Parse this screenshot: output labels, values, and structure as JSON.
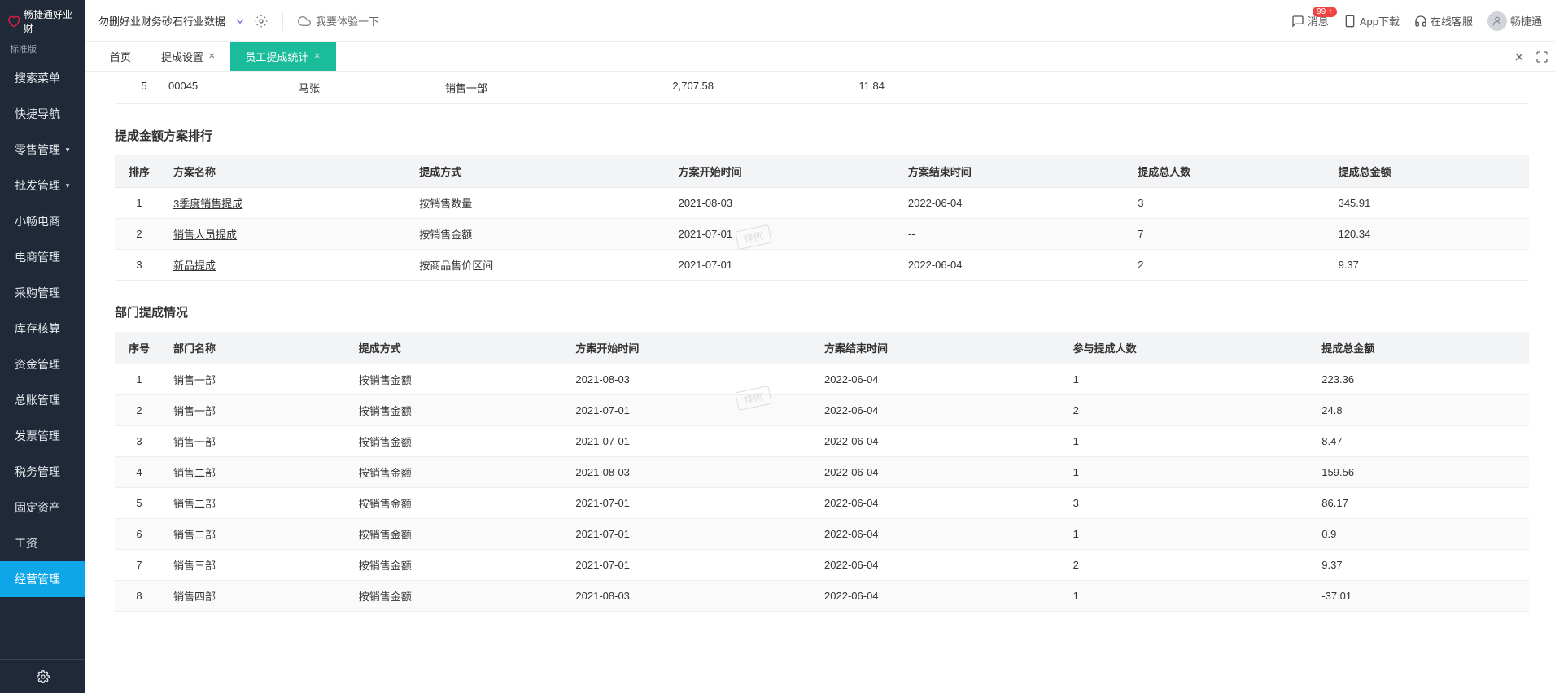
{
  "brand": {
    "name": "畅捷通好业财",
    "edition": "标准版"
  },
  "workspace": {
    "name": "勿删好业财务砂石行业数据",
    "try_label": "我要体验一下"
  },
  "top_right": {
    "message": "消息",
    "badge": "99 +",
    "app": "App下载",
    "service": "在线客服",
    "user": "畅捷通"
  },
  "nav": {
    "items": [
      {
        "label": "搜索菜单",
        "caret": false
      },
      {
        "label": "快捷导航",
        "caret": false
      },
      {
        "label": "零售管理",
        "caret": true
      },
      {
        "label": "批发管理",
        "caret": true
      },
      {
        "label": "小畅电商",
        "caret": false
      },
      {
        "label": "电商管理",
        "caret": false
      },
      {
        "label": "采购管理",
        "caret": false
      },
      {
        "label": "库存核算",
        "caret": false
      },
      {
        "label": "资金管理",
        "caret": false
      },
      {
        "label": "总账管理",
        "caret": false
      },
      {
        "label": "发票管理",
        "caret": false
      },
      {
        "label": "税务管理",
        "caret": false
      },
      {
        "label": "固定资产",
        "caret": false
      },
      {
        "label": "工资",
        "caret": false
      },
      {
        "label": "经营管理",
        "caret": false,
        "active": true
      }
    ]
  },
  "tabs": {
    "items": [
      {
        "label": "首页",
        "closable": false
      },
      {
        "label": "提成设置",
        "closable": true
      },
      {
        "label": "员工提成统计",
        "closable": true,
        "active": true
      }
    ]
  },
  "partial_row": {
    "rank": "5",
    "code": "00045",
    "name": "马张",
    "dept": "销售一部",
    "amount": "2,707.58",
    "commission": "11.84"
  },
  "section1": {
    "title": "提成金额方案排行",
    "columns": [
      "排序",
      "方案名称",
      "提成方式",
      "方案开始时间",
      "方案结束时间",
      "提成总人数",
      "提成总金额"
    ],
    "rows": [
      [
        "1",
        "3季度销售提成",
        "按销售数量",
        "2021-08-03",
        "2022-06-04",
        "3",
        "345.91"
      ],
      [
        "2",
        "销售人员提成",
        "按销售金额",
        "2021-07-01",
        "--",
        "7",
        "120.34"
      ],
      [
        "3",
        "新品提成",
        "按商品售价区间",
        "2021-07-01",
        "2022-06-04",
        "2",
        "9.37"
      ]
    ]
  },
  "section2": {
    "title": "部门提成情况",
    "columns": [
      "序号",
      "部门名称",
      "提成方式",
      "方案开始时间",
      "方案结束时间",
      "参与提成人数",
      "提成总金额"
    ],
    "rows": [
      [
        "1",
        "销售一部",
        "按销售金额",
        "2021-08-03",
        "2022-06-04",
        "1",
        "223.36"
      ],
      [
        "2",
        "销售一部",
        "按销售金额",
        "2021-07-01",
        "2022-06-04",
        "2",
        "24.8"
      ],
      [
        "3",
        "销售一部",
        "按销售金额",
        "2021-07-01",
        "2022-06-04",
        "1",
        "8.47"
      ],
      [
        "4",
        "销售二部",
        "按销售金额",
        "2021-08-03",
        "2022-06-04",
        "1",
        "159.56"
      ],
      [
        "5",
        "销售二部",
        "按销售金额",
        "2021-07-01",
        "2022-06-04",
        "3",
        "86.17"
      ],
      [
        "6",
        "销售二部",
        "按销售金额",
        "2021-07-01",
        "2022-06-04",
        "1",
        "0.9"
      ],
      [
        "7",
        "销售三部",
        "按销售金额",
        "2021-07-01",
        "2022-06-04",
        "2",
        "9.37"
      ],
      [
        "8",
        "销售四部",
        "按销售金额",
        "2021-08-03",
        "2022-06-04",
        "1",
        "-37.01"
      ]
    ]
  },
  "watermark": "样例",
  "colors": {
    "sidebar_bg": "#1f2937",
    "active_nav": "#0ea5e9",
    "active_tab": "#1abc9c",
    "badge": "#ef4444",
    "header_bg": "#f3f4f6"
  }
}
